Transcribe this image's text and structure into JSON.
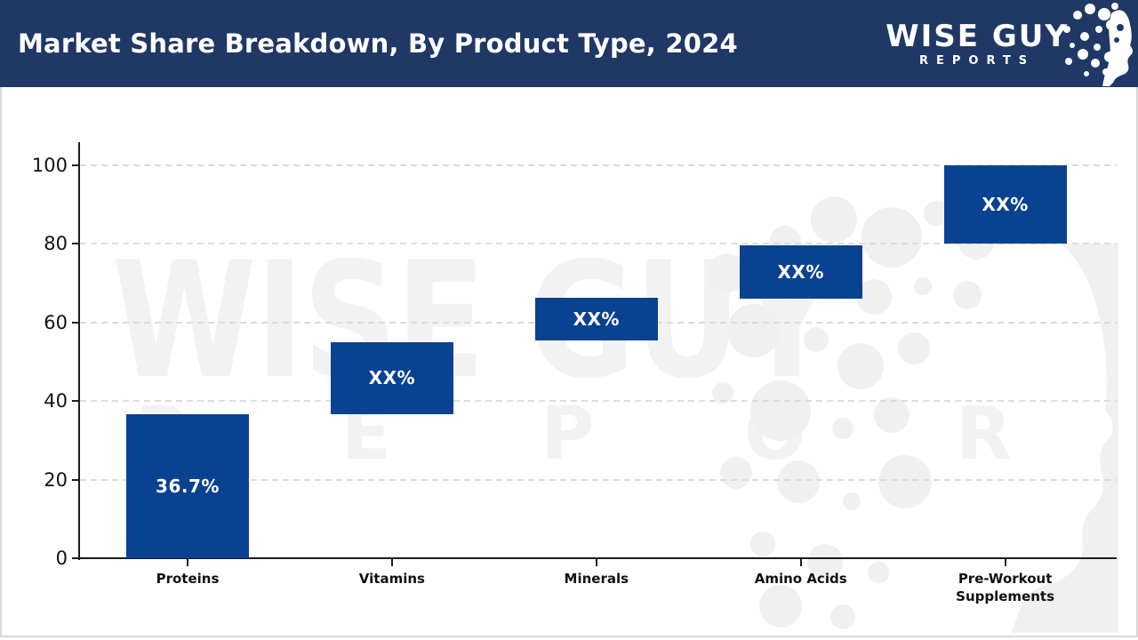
{
  "header": {
    "title": "Market Share Breakdown, By Product Type, 2024",
    "bg_color": "#1f3865",
    "logo": {
      "line1": "WISE GUY",
      "line2": "REPORTS"
    }
  },
  "watermark": {
    "line1": "WISE GUY",
    "line2": "R E P O R T S",
    "color": "#f2f2f2"
  },
  "chart_data": {
    "type": "bar",
    "subtype": "waterfall",
    "title": "Market Share Breakdown, By Product Type, 2024",
    "unit": "%",
    "categories": [
      "Proteins",
      "Vitamins",
      "Minerals",
      "Amino Acids",
      "Pre-Workout Supplements"
    ],
    "segments": [
      {
        "category": "Proteins",
        "start": 0,
        "end": 36.7,
        "label": "36.7%"
      },
      {
        "category": "Vitamins",
        "start": 36.7,
        "end": 55,
        "label": "XX%"
      },
      {
        "category": "Minerals",
        "start": 55.4,
        "end": 66.2,
        "label": "XX%"
      },
      {
        "category": "Amino Acids",
        "start": 66,
        "end": 79.5,
        "label": "XX%"
      },
      {
        "category": "Pre-Workout Supplements",
        "start": 80,
        "end": 100,
        "label": "XX%"
      }
    ],
    "xlabel": "",
    "ylabel": "",
    "ylim": [
      0,
      105
    ],
    "yticks": [
      0,
      20,
      40,
      60,
      80,
      100
    ],
    "grid": "horizontal-dashed",
    "legend": "none",
    "bar_color": "#0a4292",
    "bar_value_color": "#ffffff",
    "axis_color": "#1c1c1c"
  }
}
